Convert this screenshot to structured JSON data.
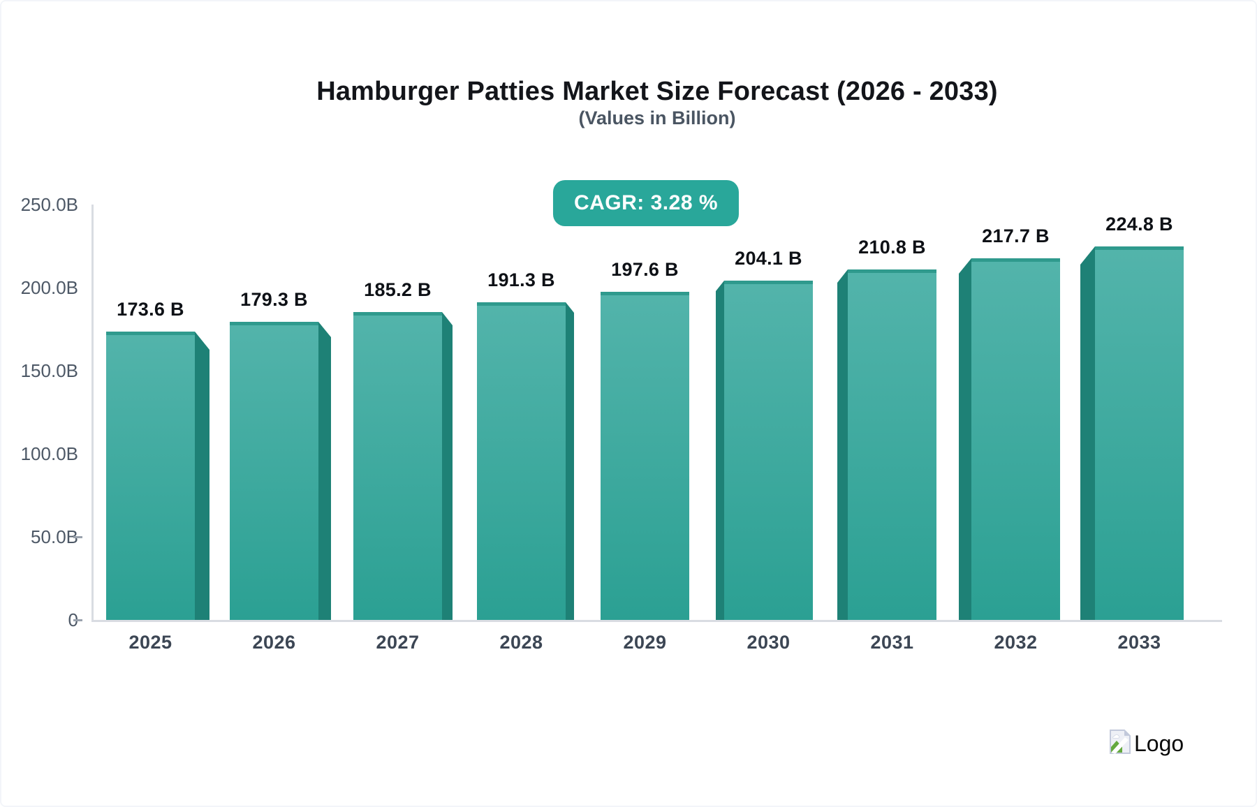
{
  "header": {
    "title": "Hamburger Patties Market Size Forecast (2026 - 2033)",
    "subtitle": "(Values in Billion)"
  },
  "badge": {
    "label": "CAGR: 3.28 %"
  },
  "footer": {
    "logo_alt": "Logo"
  },
  "chart_data": {
    "type": "bar",
    "title": "Hamburger Patties Market Size Forecast (2026 - 2033)",
    "subtitle": "(Values in Billion)",
    "cagr": "3.28 %",
    "categories": [
      "2025",
      "2026",
      "2027",
      "2028",
      "2029",
      "2030",
      "2031",
      "2032",
      "2033"
    ],
    "values": [
      173.6,
      179.3,
      185.2,
      191.3,
      197.6,
      204.1,
      210.8,
      217.7,
      224.8
    ],
    "value_labels": [
      "173.6 B",
      "179.3 B",
      "185.2 B",
      "191.3 B",
      "197.6 B",
      "204.1 B",
      "210.8 B",
      "217.7 B",
      "224.8 B"
    ],
    "unit": "Billion",
    "xlabel": "",
    "ylabel": "",
    "ylim": [
      0,
      250
    ],
    "y_ticks": [
      {
        "label": "250.0B",
        "value": 250
      },
      {
        "label": "200.0B",
        "value": 200
      },
      {
        "label": "150.0B",
        "value": 150
      },
      {
        "label": "100.0B",
        "value": 100
      },
      {
        "label": "50.0B",
        "value": 50
      },
      {
        "label": "0",
        "value": 0
      }
    ],
    "grid": false,
    "legend": false,
    "bar_style_3d": true
  },
  "colors": {
    "title": "#13151a",
    "subtitle": "#4a5562",
    "badge_bg": "#29a79a",
    "badge_text": "#ffffff",
    "axis_line": "#d9dce2",
    "tick": "#9aa2ad",
    "y_label": "#4d5866",
    "x_label": "#3c4654",
    "value_label": "#0e1116",
    "face_top": "#53b4ab",
    "face_bottom": "#2ba093",
    "side": "#1e8176",
    "top_edge": "#2f9a8d"
  }
}
